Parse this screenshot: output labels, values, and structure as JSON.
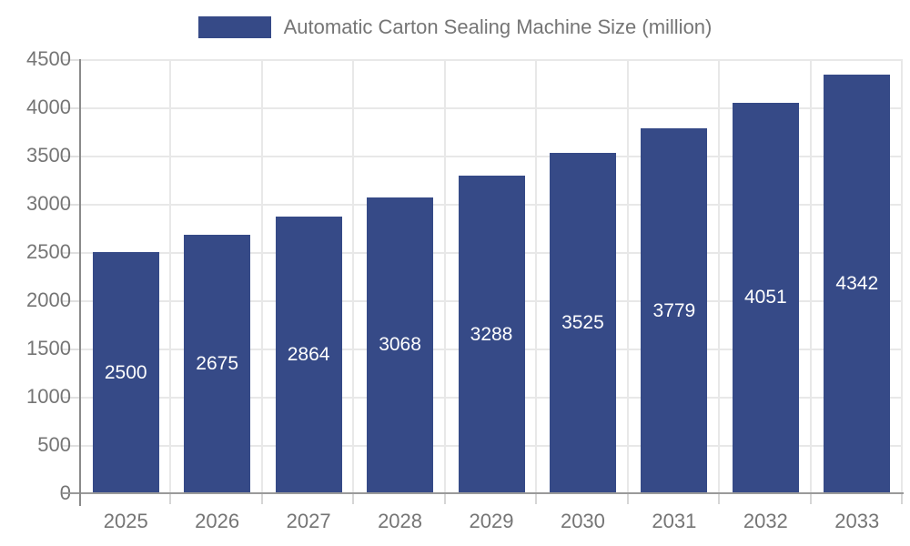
{
  "chart_data": {
    "type": "bar",
    "title": "",
    "legend": {
      "label": "Automatic Carton Sealing Machine Size (million)",
      "position": "top-center"
    },
    "categories": [
      "2025",
      "2026",
      "2027",
      "2028",
      "2029",
      "2030",
      "2031",
      "2032",
      "2033"
    ],
    "series": [
      {
        "name": "Automatic Carton Sealing Machine Size (million)",
        "values": [
          2500,
          2675,
          2864,
          3068,
          3288,
          3525,
          3779,
          4051,
          4342
        ]
      }
    ],
    "value_labels_shown": true,
    "xlabel": "",
    "ylabel": "",
    "ylim": [
      0,
      4500
    ],
    "ytick_step": 500,
    "grid": true,
    "colors": {
      "bar": "#364a87",
      "axis_line": "#8a8a8a",
      "gridline": "#e8e8e8",
      "axis_text": "#757575",
      "value_label_text": "#ffffff",
      "background": "#ffffff"
    }
  }
}
